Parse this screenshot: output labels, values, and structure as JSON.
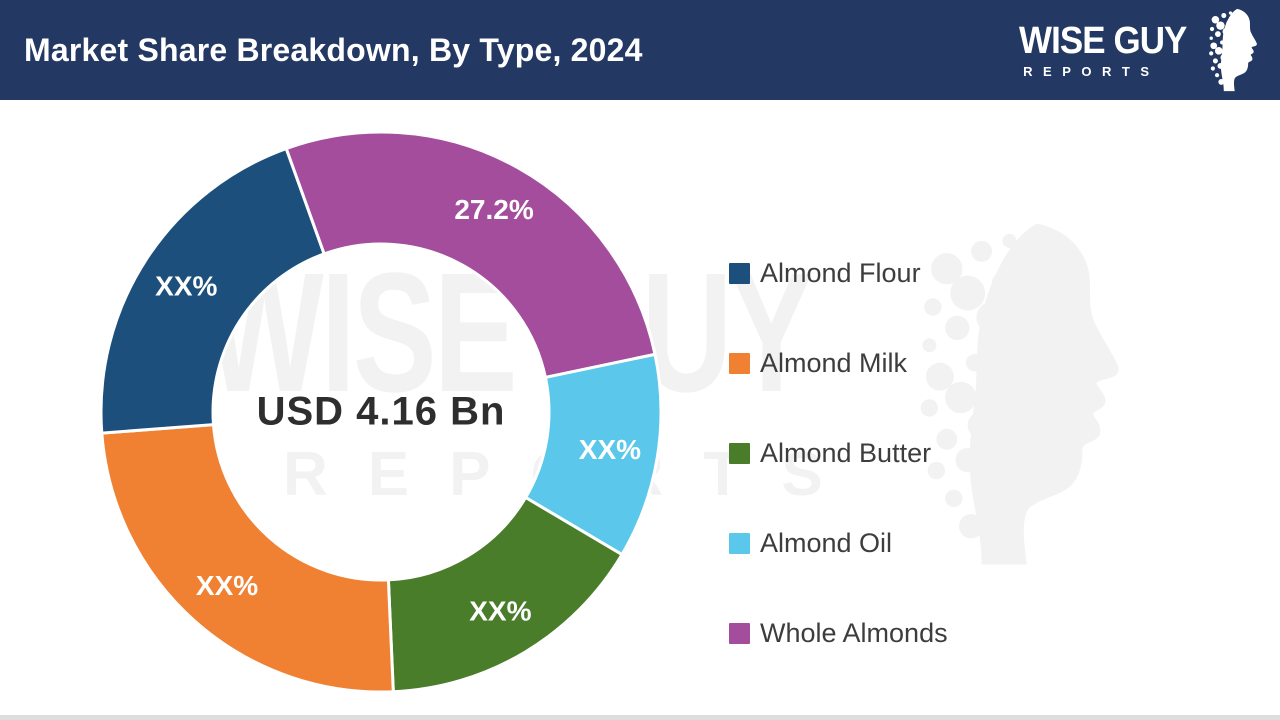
{
  "header": {
    "title": "Market Share Breakdown, By Type, 2024",
    "logo": {
      "wordmark": "WISE GUY",
      "subtitle": "REPORTS"
    }
  },
  "watermark": {
    "wordmark": "WISE GUY",
    "subtitle": "REPORTS"
  },
  "chart_data": {
    "type": "pie",
    "subtype": "donut",
    "title": "Market Share Breakdown, By Type, 2024",
    "center_label": "USD 4.16 Bn",
    "units": "percent market share",
    "start_angle_deg": -19.8,
    "draw_direction": "clockwise from start angle; segments listed in legend order and rendered in reverse order",
    "legend_position": "right",
    "inner_radius_ratio": 0.6,
    "segments": [
      {
        "label": "Almond Flour",
        "value": 20.7,
        "display": "XX%",
        "color": "#1D4F7C"
      },
      {
        "label": "Almond Milk",
        "value": 24.5,
        "display": "XX%",
        "color": "#F08132"
      },
      {
        "label": "Almond Butter",
        "value": 15.8,
        "display": "XX%",
        "color": "#4A7D2A"
      },
      {
        "label": "Almond Oil",
        "value": 11.8,
        "display": "XX%",
        "color": "#5BC7EA"
      },
      {
        "label": "Whole Almonds",
        "value": 27.2,
        "display": "27.2%",
        "color": "#A44D9D"
      }
    ],
    "note": "Only the Whole Almonds slice shows a numeric data label (27.2%); all other slices are masked as XX%. Slice values other than 27.2 are estimated from arc angles.",
    "colors": {
      "header_bg": "#233862",
      "canvas_bg": "#FFFFFF",
      "watermark": "#F2F2F2",
      "slice_label_text": "#FFFFFF",
      "legend_text": "#3D3D3D",
      "center_text": "#2E2E2E",
      "bottom_strip": "#DEDEDE"
    }
  }
}
